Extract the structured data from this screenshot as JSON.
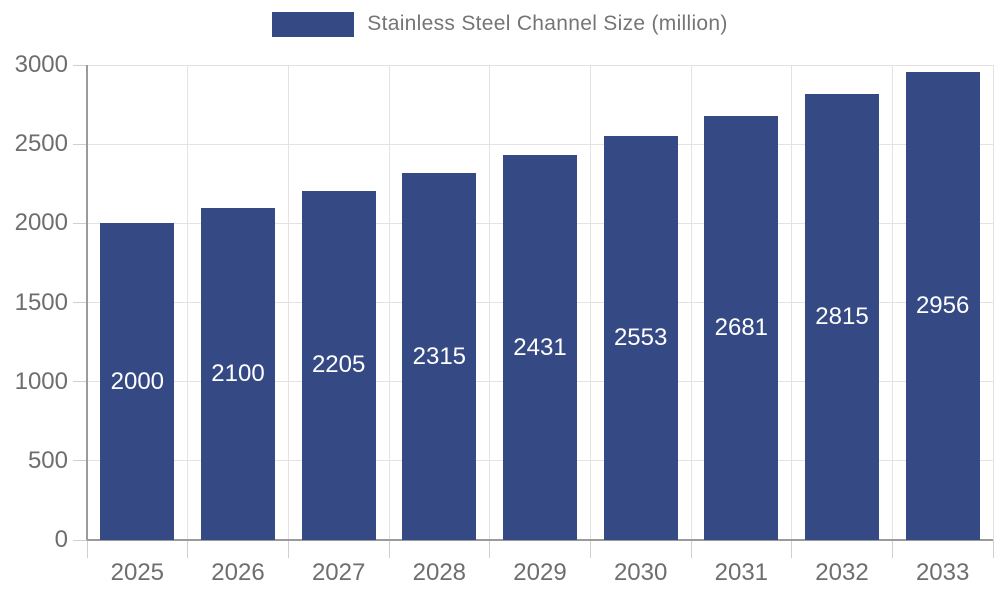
{
  "legend": {
    "label": "Stainless Steel Channel Size (million)"
  },
  "chart_data": {
    "type": "bar",
    "title": "Stainless Steel Channel Size (million)",
    "series_name": "Stainless Steel Channel Size (million)",
    "categories": [
      "2025",
      "2026",
      "2027",
      "2028",
      "2029",
      "2030",
      "2031",
      "2032",
      "2033"
    ],
    "values": [
      2000,
      2100,
      2205,
      2315,
      2431,
      2553,
      2681,
      2815,
      2956
    ],
    "value_labels": [
      "2000",
      "2100",
      "2205",
      "2315",
      "2431",
      "2553",
      "2681",
      "2815",
      "2956"
    ],
    "xlabel": "",
    "ylabel": "",
    "ylim": [
      0,
      3000
    ],
    "yticks": [
      0,
      500,
      1000,
      1500,
      2000,
      2500,
      3000
    ],
    "grid": true,
    "legend_position": "top-center",
    "colors": {
      "bar": "#354a85",
      "value_label": "#ffffff",
      "axis_line": "#9b9b9b",
      "gridline": "#e3e3e3",
      "tick": "#cfcfcf",
      "axis_text": "#6e6e6e",
      "legend_text": "#757575",
      "background": "#ffffff"
    }
  }
}
